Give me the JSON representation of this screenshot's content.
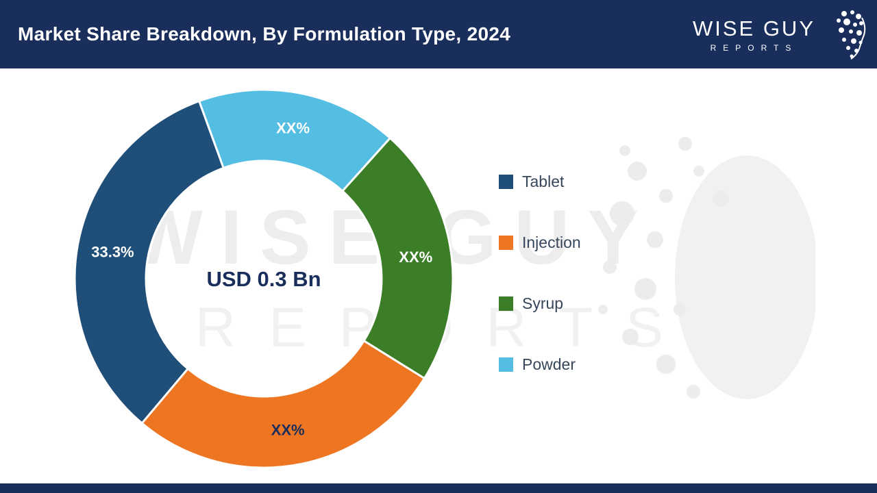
{
  "header": {
    "title": "Market Share Breakdown, By Formulation Type, 2024",
    "logo": {
      "line1": "WISE GUY",
      "line2": "REPORTS"
    }
  },
  "watermark": {
    "line1": "WISE GUY",
    "line2": "REPORTS"
  },
  "chart_data": {
    "type": "pie",
    "donut": true,
    "title": "Market Share Breakdown, By Formulation Type, 2024",
    "center_label": "USD 0.3 Bn",
    "start_angle_deg": -20,
    "legend_position": "right",
    "segments": [
      {
        "name": "Powder",
        "label": "XX%",
        "pct": 17.2,
        "color": "#53bde2",
        "label_color": "#ffffff"
      },
      {
        "name": "Syrup",
        "label": "XX%",
        "pct": 22.2,
        "color": "#3c7d28",
        "label_color": "#ffffff"
      },
      {
        "name": "Injection",
        "label": "XX%",
        "pct": 27.3,
        "color": "#ee7623",
        "label_color": "#1a2e5c"
      },
      {
        "name": "Tablet",
        "label": "33.3%",
        "pct": 33.3,
        "color": "#1f4e79",
        "label_color": "#ffffff"
      }
    ],
    "legend": [
      {
        "label": "Tablet",
        "color": "#1f4e79"
      },
      {
        "label": "Injection",
        "color": "#ee7623"
      },
      {
        "label": "Syrup",
        "color": "#3c7d28"
      },
      {
        "label": "Powder",
        "color": "#53bde2"
      }
    ]
  },
  "colors": {
    "header_bg": "#192e5b",
    "footer_bg": "#192e5b",
    "center_text": "#1a2e5c",
    "legend_text": "#37465a",
    "watermark": "#ededed"
  }
}
